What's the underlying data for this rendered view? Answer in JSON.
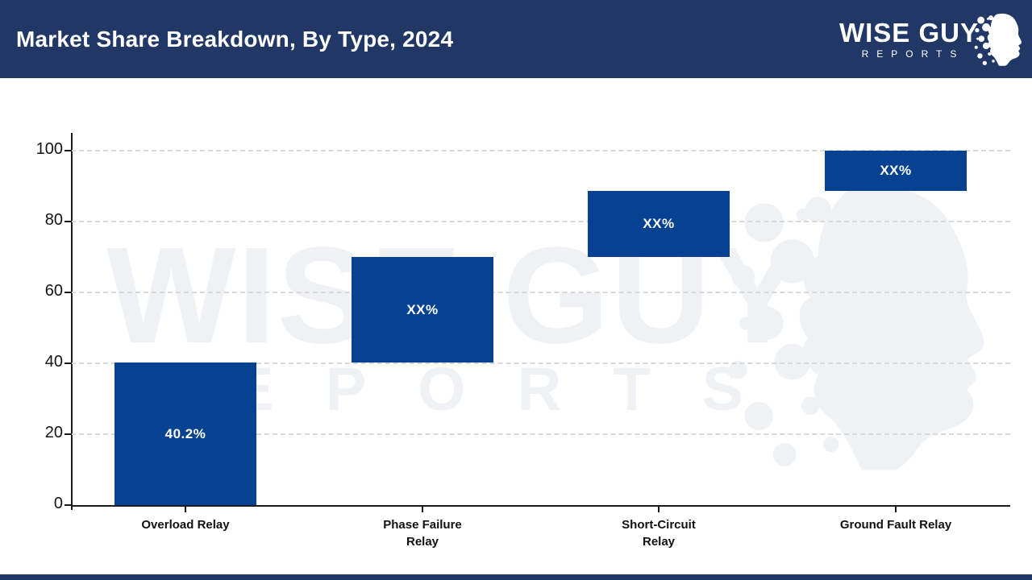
{
  "header": {
    "title": "Market Share Breakdown, By Type, 2024",
    "logo": {
      "line1": "WISE GUY",
      "line2": "REPORTS"
    },
    "background_color": "#213766"
  },
  "watermark": {
    "line1": "WISE GUY",
    "line2": "REPORTS",
    "color": "#f0f1f4"
  },
  "footer": {
    "background_color": "#213766"
  },
  "chart_data": {
    "type": "bar",
    "subtype": "waterfall",
    "title": "Market Share Breakdown, By Type, 2024",
    "categories": [
      "Overload Relay",
      "Phase Failure Relay",
      "Short-Circuit Relay",
      "Ground Fault Relay"
    ],
    "category_label_lines": [
      [
        "Overload Relay"
      ],
      [
        "Phase Failure",
        "Relay"
      ],
      [
        "Short-Circuit",
        "Relay"
      ],
      [
        "Ground Fault Relay"
      ]
    ],
    "segments": [
      {
        "category": "Overload Relay",
        "start": 0,
        "end": 40.2,
        "value_label": "40.2%"
      },
      {
        "category": "Phase Failure Relay",
        "start": 40.2,
        "end": 70,
        "value_label": "XX%"
      },
      {
        "category": "Short-Circuit Relay",
        "start": 70,
        "end": 88.6,
        "value_label": "XX%"
      },
      {
        "category": "Ground Fault Relay",
        "start": 88.6,
        "end": 100,
        "value_label": "XX%"
      }
    ],
    "ylim": [
      0,
      100
    ],
    "yticks": [
      0,
      20,
      40,
      60,
      80,
      100
    ],
    "xlabel": "",
    "ylabel": "",
    "grid": {
      "horizontal": true,
      "style": "dashed"
    },
    "legend": null,
    "bar_color": "#064291",
    "bar_label_color": "#ffffff"
  }
}
